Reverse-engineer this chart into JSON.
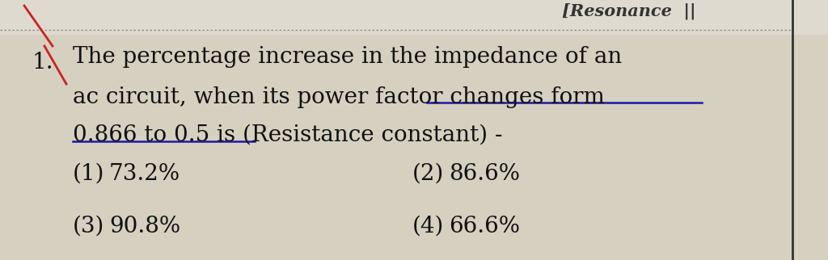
{
  "question_number": "1.",
  "question_line1": "The percentage increase in the impedance of an",
  "question_line2": "ac circuit, when its power factor changes form",
  "question_line3": "0.866 to 0.5 is (Resistance constant) -",
  "options": [
    {
      "num": "(1)",
      "val": "73.2%"
    },
    {
      "num": "(2)",
      "val": "86.6%"
    },
    {
      "num": "(3)",
      "val": "90.8%"
    },
    {
      "num": "(4)",
      "val": "66.6%"
    }
  ],
  "header_right": "[Resonance  ||",
  "bg_color": "#d6d0c0",
  "text_color": "#111111",
  "font_size_question": 20,
  "font_size_options": 20,
  "font_size_header": 15,
  "underline_color": "#1a1aaa",
  "red_line_color": "#cc2222",
  "border_color": "#666666",
  "right_border_color": "#333333"
}
